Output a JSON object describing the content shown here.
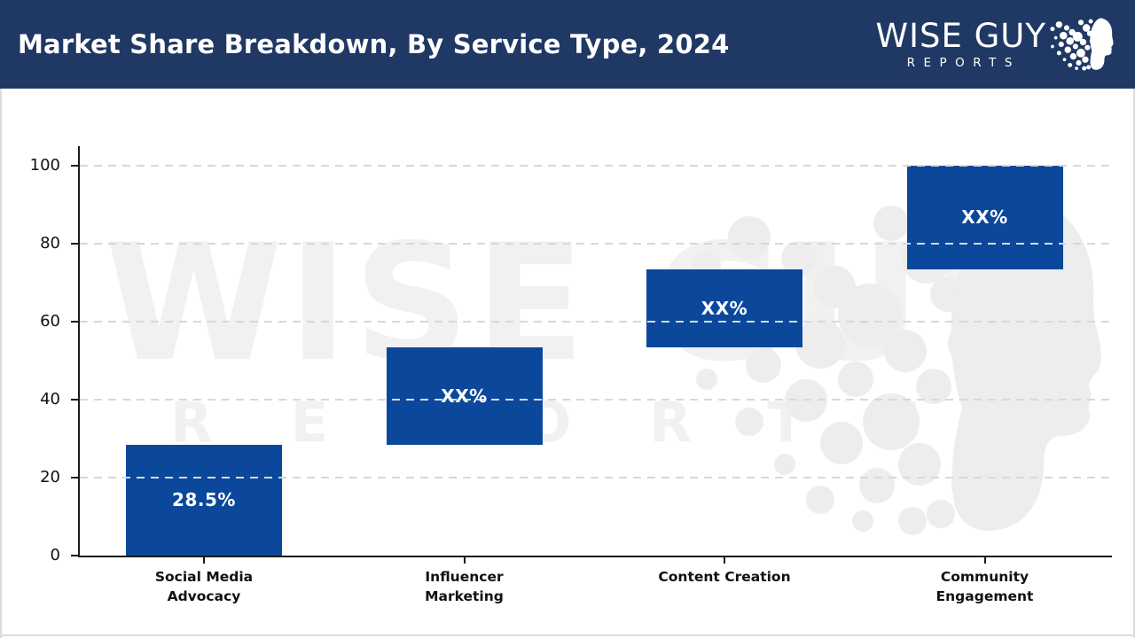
{
  "header": {
    "title": "Market Share Breakdown, By Service Type, 2024",
    "bg_color": "#1f3864",
    "logo_line1": "WISE GUY",
    "logo_line2": "REPORTS"
  },
  "watermark": {
    "line1": "WISE GUY",
    "line2": "REPORTS"
  },
  "chart_data": {
    "type": "bar",
    "subtype": "waterfall",
    "title": "Market Share Breakdown, By Service Type, 2024",
    "categories": [
      "Social Media Advocacy",
      "Influencer Marketing",
      "Content Creation",
      "Community Engagement"
    ],
    "segments": [
      {
        "category_lines": [
          "Social Media",
          "Advocacy"
        ],
        "start": 0,
        "end": 28.5,
        "label": "28.5%"
      },
      {
        "category_lines": [
          "Influencer",
          "Marketing"
        ],
        "start": 28.5,
        "end": 53.5,
        "label": "XX%"
      },
      {
        "category_lines": [
          "Content Creation"
        ],
        "start": 53.5,
        "end": 73.5,
        "label": "XX%"
      },
      {
        "category_lines": [
          "Community",
          "Engagement"
        ],
        "start": 73.5,
        "end": 100,
        "label": "XX%"
      }
    ],
    "yticks": [
      0,
      20,
      40,
      60,
      80,
      100
    ],
    "ylim": [
      0,
      100
    ],
    "xlabel": "",
    "ylabel": "",
    "legend": null,
    "grid": "horizontal-dashed",
    "grid_color": "#d8d8d8",
    "bar_color": "#0b489c",
    "axis_color": "#1a1a1a",
    "header_color": "#1f3864"
  }
}
